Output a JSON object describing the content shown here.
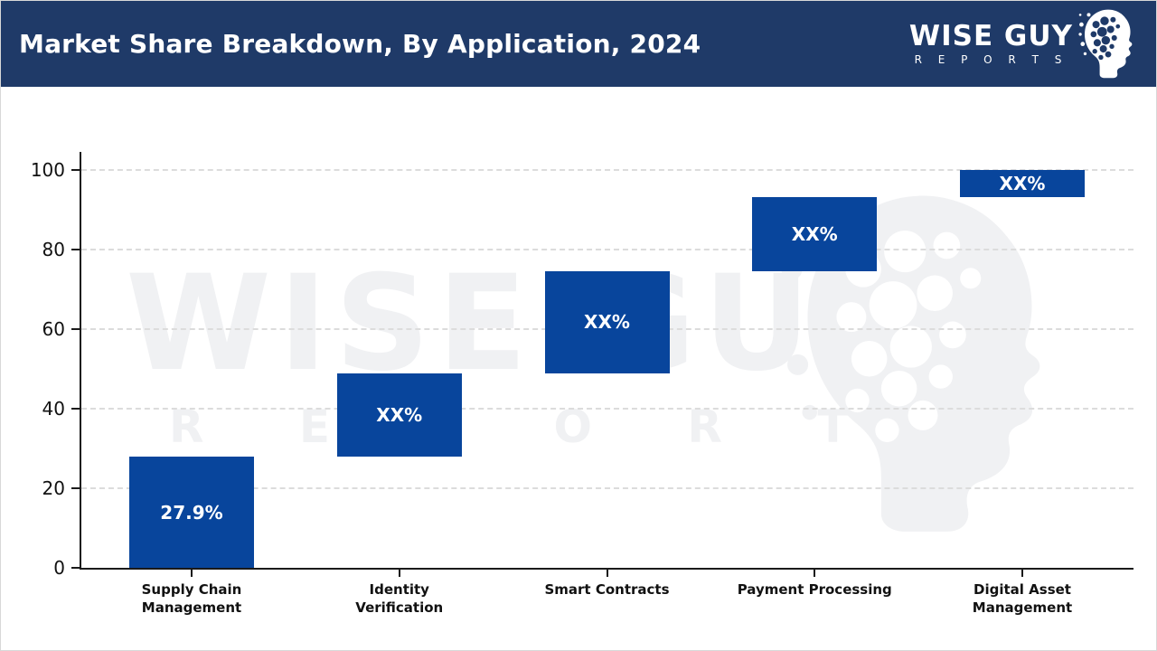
{
  "header": {
    "title": "Market Share Breakdown, By Application, 2024",
    "logo": {
      "wordmark": "WISE GUY",
      "subtext": "R E P O R T S",
      "icon": "head-profile-dots-icon"
    }
  },
  "watermark": {
    "line1": "WISE GUY",
    "line2": "R E P O R T S",
    "icon": "head-profile-dots-watermark"
  },
  "colors": {
    "header_bg": "#1f3a68",
    "bar_fill": "#08459c",
    "bar_label_text": "#ffffff",
    "axis": "#1a1a1a",
    "gridline": "#dcdcdc",
    "tick_text": "#111111",
    "watermark": "#f0f1f3"
  },
  "chart_data": {
    "type": "bar",
    "subtype": "waterfall-floating-bars",
    "title": "Market Share Breakdown, By Application, 2024",
    "xlabel": "",
    "ylabel": "",
    "ylim": [
      0,
      104.5
    ],
    "yticks": [
      0,
      20,
      40,
      60,
      80,
      100
    ],
    "grid": true,
    "grid_style": "dashed",
    "legend": "none",
    "categories": [
      "Supply Chain Management",
      "Identity Verification",
      "Smart Contracts",
      "Payment Processing",
      "Digital Asset Management"
    ],
    "segments": [
      {
        "category": "Supply Chain\nManagement",
        "start": 0,
        "end": 27.9,
        "label": "27.9%"
      },
      {
        "category": "Identity\nVerification",
        "start": 27.9,
        "end": 48.9,
        "label": "XX%"
      },
      {
        "category": "Smart Contracts",
        "start": 48.9,
        "end": 74.5,
        "label": "XX%"
      },
      {
        "category": "Payment Processing",
        "start": 74.5,
        "end": 93.2,
        "label": "XX%"
      },
      {
        "category": "Digital Asset\nManagement",
        "start": 93.2,
        "end": 100,
        "label": "XX%"
      }
    ]
  }
}
